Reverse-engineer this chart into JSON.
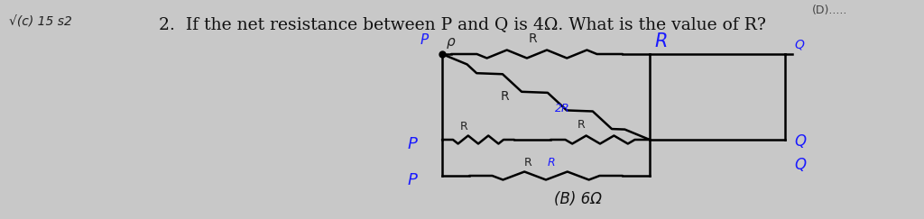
{
  "background_color": "#c8c8c8",
  "title_text": "2.  If the net resistance between P and Q is 4Ω. What is the value of R?",
  "title_fontsize": 13.5,
  "title_color": "#111111",
  "answer_text": "(B) 6Ω",
  "answer_fontsize": 12,
  "header_left_text": "√(c) 15 s2",
  "corner_top_right": "(D)....."
}
